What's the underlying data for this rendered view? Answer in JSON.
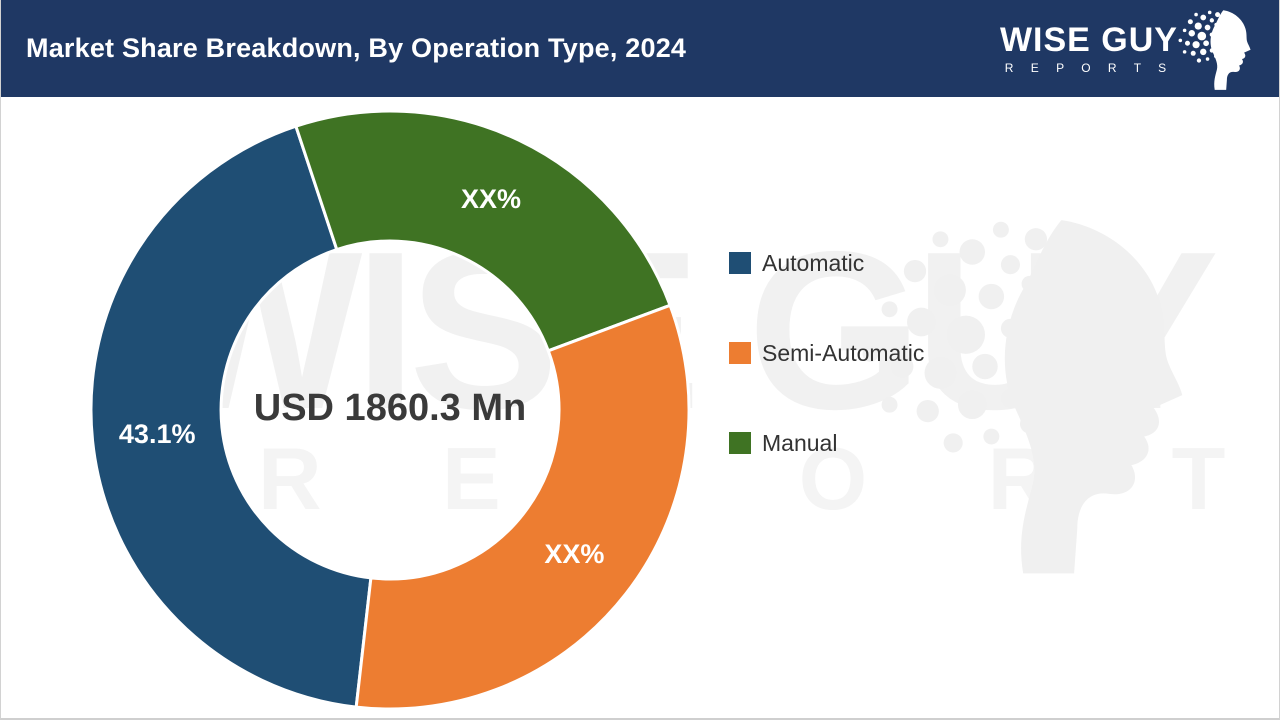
{
  "header": {
    "title": "Market Share Breakdown, By Operation Type, 2024",
    "bg_color": "#1f3864",
    "logo": {
      "line1": "WISE GUY",
      "line2": "R E P O R T S"
    }
  },
  "watermark": {
    "line1": "WISE GUY",
    "line2": "R E P O R T S"
  },
  "chart_data": {
    "type": "donut",
    "title": "Market Share Breakdown, By Operation Type, 2024",
    "center_label": "USD 1860.3 Mn",
    "legend_position": "right",
    "start_angle_deg": 186.5,
    "slice_draw_order": [
      0,
      2,
      1
    ],
    "separator_color": "#ffffff",
    "series": [
      {
        "name": "Automatic",
        "value": 43.1,
        "label": "43.1%",
        "color": "#1f4e74"
      },
      {
        "name": "Semi-Automatic",
        "value": 32.5,
        "label": "XX%",
        "color": "#ed7d31"
      },
      {
        "name": "Manual",
        "value": 24.4,
        "label": "XX%",
        "color": "#3f7323"
      }
    ]
  }
}
